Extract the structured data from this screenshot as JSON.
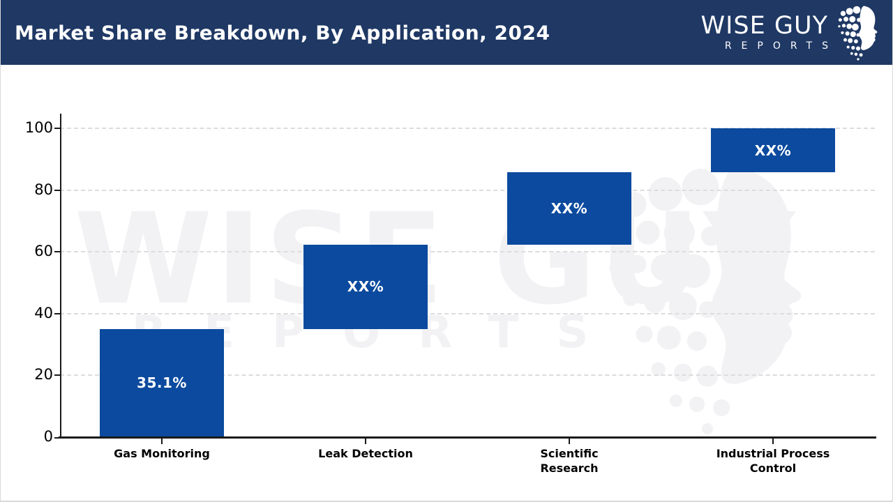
{
  "header": {
    "title": "Market Share Breakdown, By Application, 2024",
    "logo": {
      "line1": "WISE GUY",
      "line2": "REPORTS"
    }
  },
  "watermark": {
    "line1": "WISE GUY",
    "line2": "REPORTS"
  },
  "colors": {
    "header_bg": "#1f3864",
    "bar": "#0b4a9e",
    "bar_label": "#ffffff",
    "gridline": "#dcdcdc",
    "axis": "#1a1a1a",
    "tick_label": "#000000",
    "watermark": "#f2f2f4",
    "card_border": "#d9d9d9"
  },
  "chart_data": {
    "type": "bar",
    "subtype": "cumulative-waterfall",
    "title": "Market Share Breakdown, By Application, 2024",
    "categories": [
      "Gas Monitoring",
      "Leak Detection",
      "Scientific Research",
      "Industrial Process Control"
    ],
    "categories_lines": [
      [
        "Gas Monitoring"
      ],
      [
        "Leak Detection"
      ],
      [
        "Scientific",
        "Research"
      ],
      [
        "Industrial Process",
        "Control"
      ]
    ],
    "segments": [
      {
        "category": "Gas Monitoring",
        "start": 0,
        "end": 35.1,
        "label": "35.1%"
      },
      {
        "category": "Leak Detection",
        "start": 35.1,
        "end": 62.4,
        "label": "XX%"
      },
      {
        "category": "Scientific Research",
        "start": 62.4,
        "end": 85.7,
        "label": "XX%"
      },
      {
        "category": "Industrial Process Control",
        "start": 85.7,
        "end": 100,
        "label": "XX%"
      }
    ],
    "yticks": [
      0,
      20,
      40,
      60,
      80,
      100
    ],
    "ylim": [
      0,
      105
    ],
    "xlabel": "",
    "ylabel": "",
    "grid": "horizontal-dashed",
    "legend_position": "none"
  }
}
